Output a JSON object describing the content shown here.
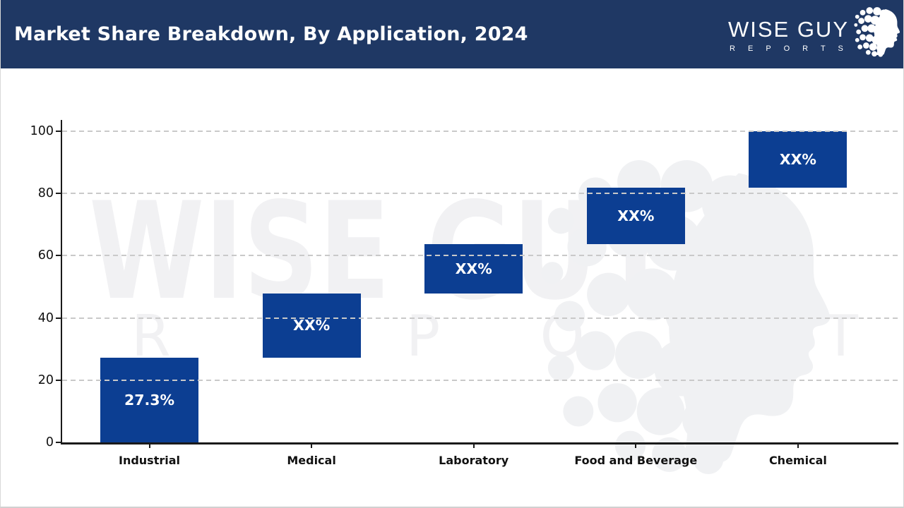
{
  "header": {
    "title": "Market Share Breakdown, By Application, 2024",
    "background_color": "#1f3864",
    "logo": {
      "line1": "WISE GUY",
      "line2": "R E P O R T S",
      "face_icon": "dotted-face-profile"
    }
  },
  "watermark": {
    "line1": "WISE GUY",
    "line2": "R E P O R T S",
    "color": "#f1f1f3"
  },
  "chart_data": {
    "type": "bar",
    "subtype": "waterfall",
    "title": "Market Share Breakdown, By Application, 2024",
    "categories": [
      "Industrial",
      "Medical",
      "Laboratory",
      "Food and Beverage",
      "Chemical"
    ],
    "segments": [
      {
        "category": "Industrial",
        "start": 0,
        "end": 27.3,
        "label": "27.3%"
      },
      {
        "category": "Medical",
        "start": 27.3,
        "end": 47.9,
        "label": "XX%"
      },
      {
        "category": "Laboratory",
        "start": 47.9,
        "end": 63.7,
        "label": "XX%"
      },
      {
        "category": "Food and Beverage",
        "start": 63.7,
        "end": 81.9,
        "label": "XX%"
      },
      {
        "category": "Chemical",
        "start": 81.9,
        "end": 100,
        "label": "XX%"
      }
    ],
    "y_ticks": [
      0,
      20,
      40,
      60,
      80,
      100
    ],
    "ylim": [
      0,
      100
    ],
    "xlabel": "",
    "ylabel": "",
    "grid": "dashed-horizontal",
    "legend": "none",
    "bar_color": "#0c3e92",
    "bar_label_color": "#ffffff",
    "grid_color": "#c9c9c9",
    "axis_color": "#1a1a1a",
    "tick_label_color": "#111111"
  }
}
